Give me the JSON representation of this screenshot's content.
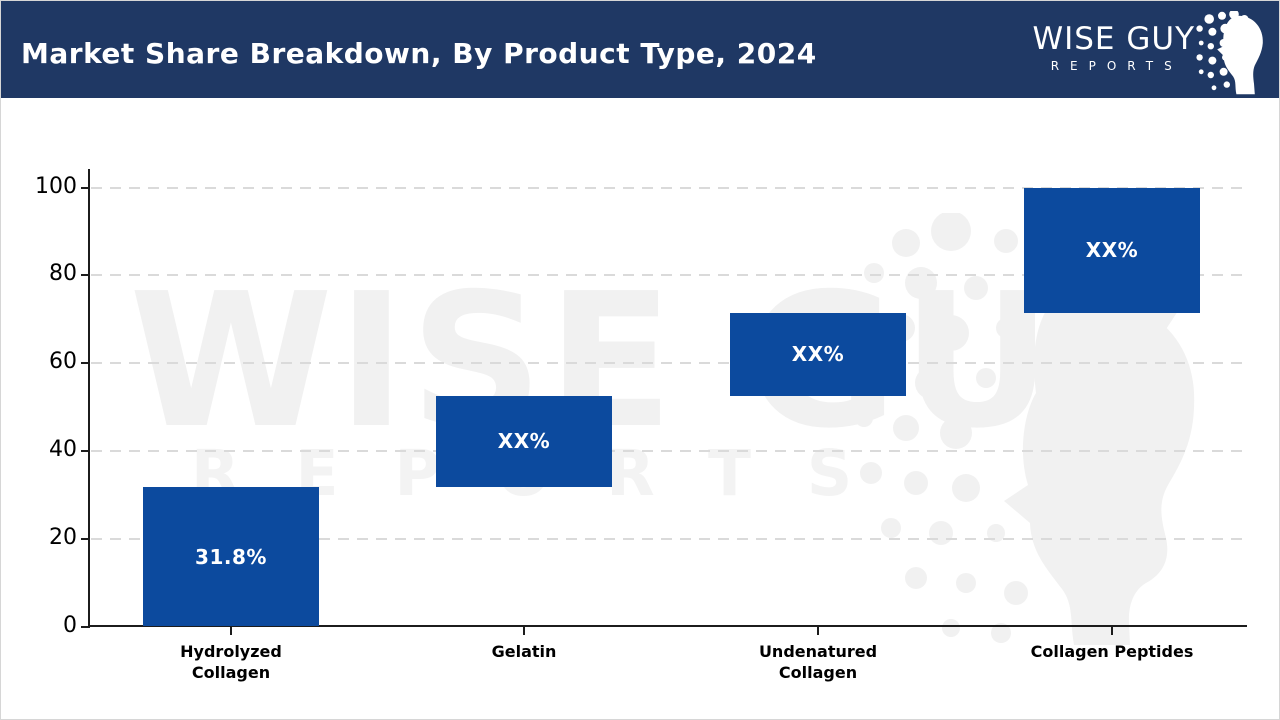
{
  "header": {
    "title": "Market Share Breakdown, By Product Type, 2024",
    "bg_color": "#1f3864",
    "logo": {
      "line1": "WISE GUY",
      "line2": "REPORTS"
    }
  },
  "watermark": {
    "big_text": "WISE GUY",
    "sub_text": "REPORTS"
  },
  "chart_data": {
    "type": "bar",
    "subtype": "waterfall",
    "title": "Market Share Breakdown, By Product Type, 2024",
    "categories": [
      "Hydrolyzed Collagen",
      "Gelatin",
      "Undenatured Collagen",
      "Collagen Peptides"
    ],
    "categories_lines": [
      [
        "Hydrolyzed",
        "Collagen"
      ],
      [
        "Gelatin"
      ],
      [
        "Undenatured",
        "Collagen"
      ],
      [
        "Collagen Peptides"
      ]
    ],
    "segments": [
      {
        "category": "Hydrolyzed Collagen",
        "start": 0,
        "end": 31.8,
        "label": "31.8%"
      },
      {
        "category": "Gelatin",
        "start": 31.8,
        "end": 52.5,
        "label": "XX%"
      },
      {
        "category": "Undenatured Collagen",
        "start": 52.5,
        "end": 71.5,
        "label": "XX%"
      },
      {
        "category": "Collagen Peptides",
        "start": 71.5,
        "end": 100,
        "label": "XX%"
      }
    ],
    "ylim": [
      0,
      100
    ],
    "yticks": [
      0,
      20,
      40,
      60,
      80,
      100
    ],
    "xlabel": "",
    "ylabel": "",
    "grid": "horizontal-dashed",
    "legend": "none",
    "bar_color": "#0c4a9e",
    "bar_label_color": "#ffffff",
    "axis_color": "#1c1c1c"
  }
}
